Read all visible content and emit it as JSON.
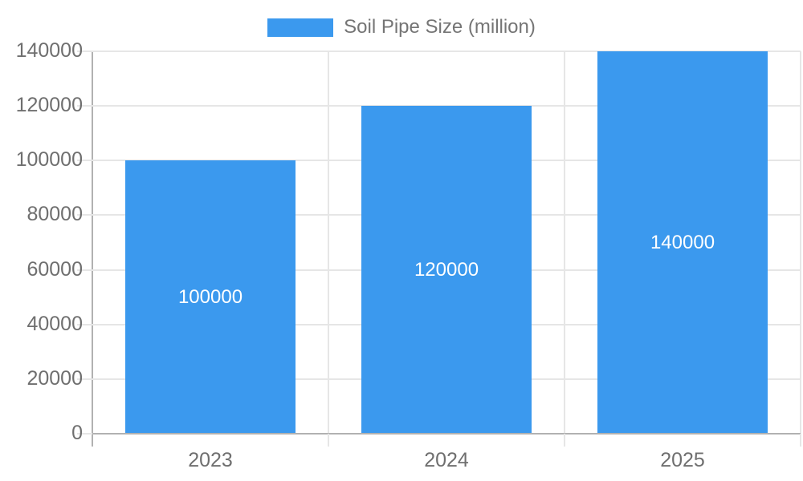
{
  "chart_data": {
    "type": "bar",
    "title": "Soil Pipe Size (million)",
    "legend_position": "top",
    "categories": [
      "2023",
      "2024",
      "2025"
    ],
    "series": [
      {
        "name": "Soil Pipe Size (million)",
        "values": [
          100000,
          120000,
          140000
        ],
        "bar_labels": [
          "100000",
          "120000",
          "140000"
        ]
      }
    ],
    "xlabel": "",
    "ylabel": "",
    "ylim": [
      0,
      140000
    ],
    "ytick_step": 20000,
    "yticks": [
      0,
      20000,
      40000,
      60000,
      80000,
      100000,
      120000,
      140000
    ],
    "grid": true,
    "colors": {
      "bar": "#3b99ee",
      "bar_label_text": "#ffffff",
      "gridline": "#e6e6e6",
      "axis_line": "#b1b1b1",
      "tick_label_text": "#6f6f6f",
      "legend_text": "#757575",
      "background": "#ffffff"
    }
  }
}
